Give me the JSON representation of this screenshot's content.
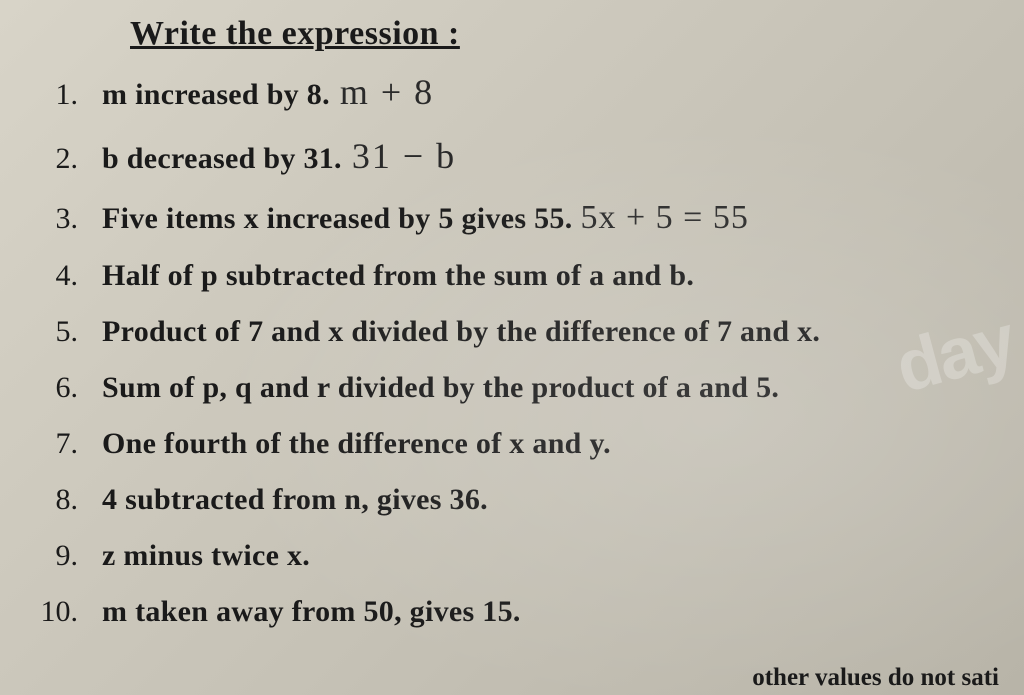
{
  "title": "Write the expression :",
  "items": [
    {
      "num": "1.",
      "text": "m increased by 8.",
      "answer": "m + 8"
    },
    {
      "num": "2.",
      "text": "b decreased by 31.",
      "answer": "31 − b"
    },
    {
      "num": "3.",
      "text": "Five items x increased by 5 gives 55.",
      "answer": "5x + 5 = 55"
    },
    {
      "num": "4.",
      "text": "Half of p subtracted from the sum of a and b.",
      "answer": ""
    },
    {
      "num": "5.",
      "text": "Product of 7 and x divided by the difference of 7 and x.",
      "answer": ""
    },
    {
      "num": "6.",
      "text": "Sum of p, q and r divided by the product of a and 5.",
      "answer": ""
    },
    {
      "num": "7.",
      "text": "One fourth of the difference of x and y.",
      "answer": ""
    },
    {
      "num": "8.",
      "text": "4 subtracted from n, gives 36.",
      "answer": ""
    },
    {
      "num": "9.",
      "text": "z minus twice x.",
      "answer": ""
    },
    {
      "num": "10.",
      "text": "m taken away from 50, gives 15.",
      "answer": ""
    }
  ],
  "watermark_text": "day",
  "cutoff_text": "other values do not sati",
  "colors": {
    "bg_light": "#d8d4c8",
    "bg_dark": "#b8b4a8",
    "text": "#1a1a1a",
    "handwriting": "#2a2a2a"
  },
  "typography": {
    "title_size": 34,
    "body_size": 30,
    "handwritten_size": 36
  }
}
